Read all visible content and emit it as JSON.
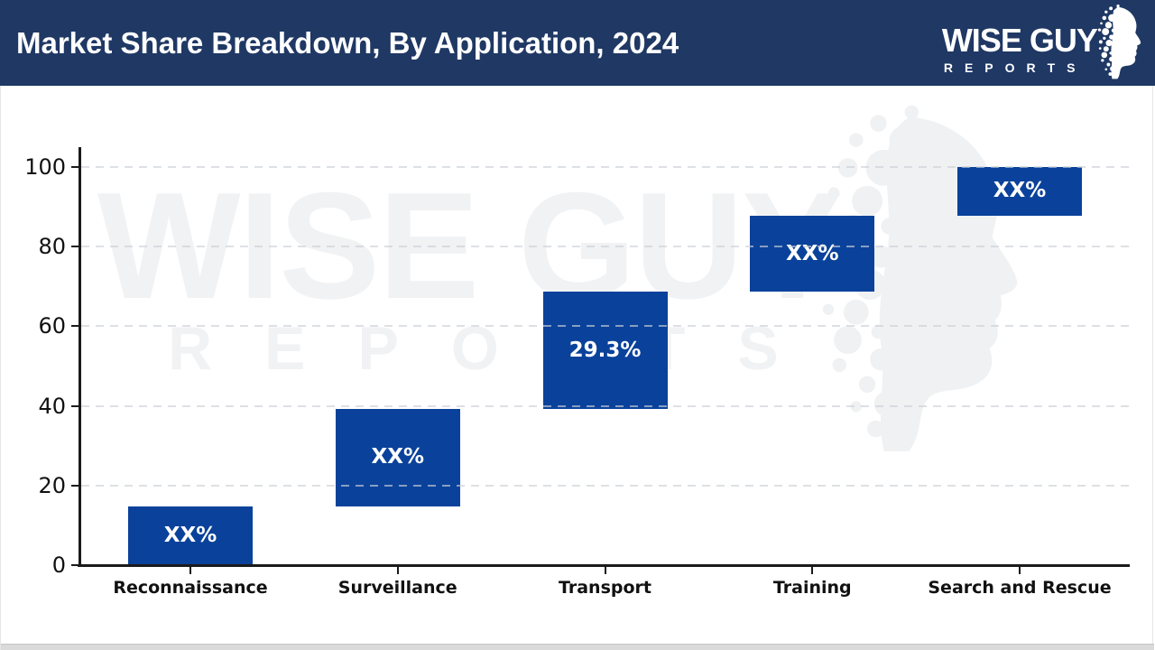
{
  "header": {
    "title": "Market Share Breakdown, By Application, 2024",
    "logo": {
      "brand_line1": "WISE GUY",
      "brand_line2": "REPORTS"
    }
  },
  "watermark": {
    "line1": "WISE GUY",
    "line2": "REPORTS"
  },
  "colors": {
    "header_bg": "#1f3864",
    "bar_fill": "#0a429b",
    "bar_label_text": "#ffffff",
    "gridline": "#dcdcdc",
    "axis": "#1a1a1a",
    "watermark": "#f1f2f4"
  },
  "chart_data": {
    "type": "bar",
    "subtype": "floating-waterfall",
    "title": "Market Share Breakdown, By Application, 2024",
    "xlabel": "",
    "ylabel": "",
    "categories": [
      "Reconnaissance",
      "Surveillance",
      "Transport",
      "Training",
      "Search and Rescue"
    ],
    "bars": [
      {
        "category": "Reconnaissance",
        "start": 0,
        "end": 14.7,
        "label": "XX%"
      },
      {
        "category": "Surveillance",
        "start": 14.7,
        "end": 39.3,
        "label": "XX%"
      },
      {
        "category": "Transport",
        "start": 39.3,
        "end": 68.6,
        "label": "29.3%"
      },
      {
        "category": "Training",
        "start": 68.6,
        "end": 87.8,
        "label": "XX%"
      },
      {
        "category": "Search and Rescue",
        "start": 87.8,
        "end": 100,
        "label": "XX%"
      }
    ],
    "ylim": [
      0,
      100
    ],
    "yticks": [
      0,
      20,
      40,
      60,
      80,
      100
    ],
    "grid": "horizontal dashed",
    "legend": "none"
  }
}
